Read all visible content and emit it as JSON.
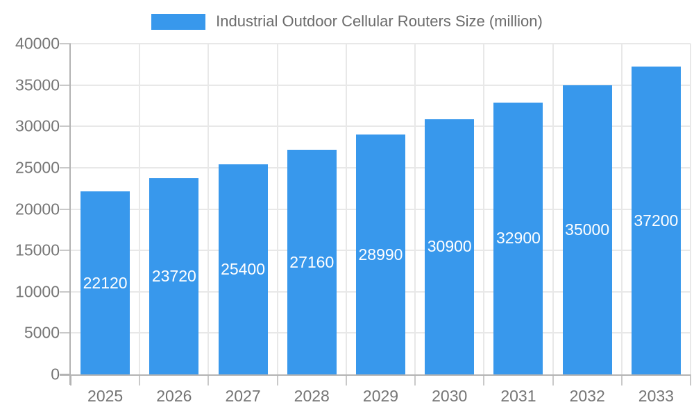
{
  "chart_data": {
    "type": "bar",
    "title": "Industrial Outdoor Cellular Routers Size (million)",
    "legend": {
      "label": "Industrial Outdoor Cellular Routers Size (million)",
      "position": "top"
    },
    "categories": [
      "2025",
      "2026",
      "2027",
      "2028",
      "2029",
      "2030",
      "2031",
      "2032",
      "2033"
    ],
    "values": [
      22120,
      23720,
      25400,
      27160,
      28990,
      30900,
      32900,
      35000,
      37200
    ],
    "bar_value_labels": [
      "22120",
      "23720",
      "25400",
      "27160",
      "28990",
      "30900",
      "32900",
      "35000",
      "37200"
    ],
    "xlabel": "",
    "ylabel": "",
    "ylim": [
      0,
      40000
    ],
    "ytick_step": 5000,
    "ytick_labels": [
      "0",
      "5000",
      "10000",
      "15000",
      "20000",
      "25000",
      "30000",
      "35000",
      "40000"
    ],
    "grid": true,
    "colors": {
      "bar": "#3898ec",
      "bar_label": "#ffffff",
      "axis_label": "#757575",
      "legend_text": "#6b6b6b",
      "gridline": "#e8e8e8",
      "axis_line": "#b3b3b3",
      "tick": "#c9c9c9",
      "background": "#ffffff"
    }
  }
}
